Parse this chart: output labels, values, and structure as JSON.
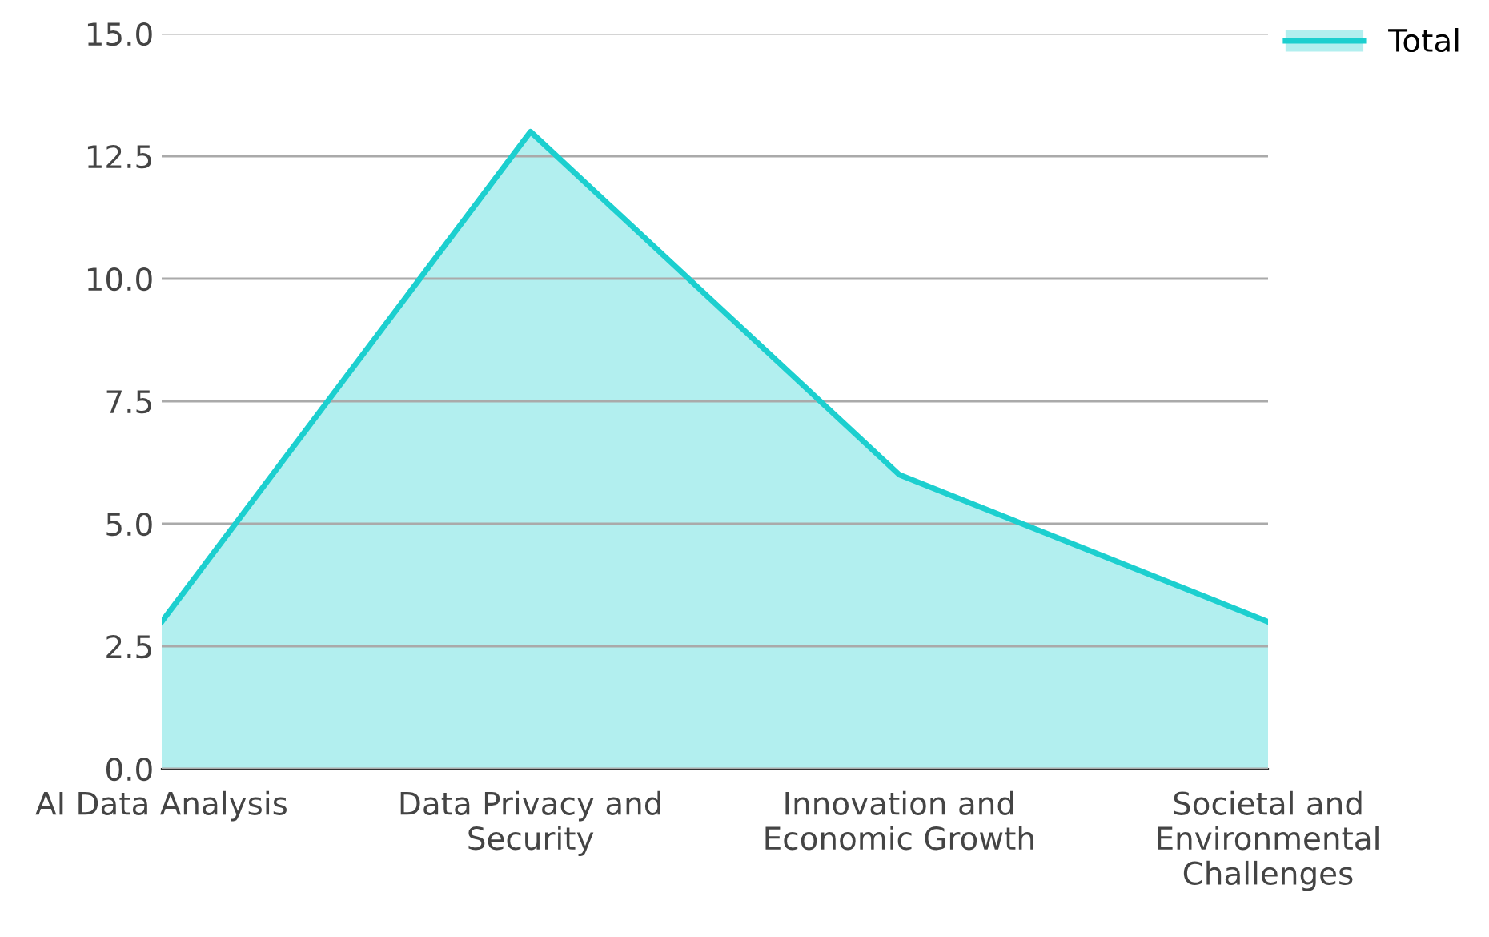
{
  "chart_data": {
    "type": "area",
    "categories": [
      "AI Data Analysis",
      "Data Privacy and\nSecurity",
      "Innovation and\nEconomic Growth",
      "Societal and\nEnvironmental\nChallenges"
    ],
    "series": [
      {
        "name": "Total",
        "color": "#1ccfcf",
        "values": [
          3,
          13,
          6,
          3
        ]
      }
    ],
    "ylim": [
      0,
      15
    ],
    "yticks": [
      {
        "value": 0,
        "label": "0.0"
      },
      {
        "value": 2.5,
        "label": "2.5"
      },
      {
        "value": 5,
        "label": "5.0"
      },
      {
        "value": 7.5,
        "label": "7.5"
      },
      {
        "value": 10,
        "label": "10.0"
      },
      {
        "value": 12.5,
        "label": "12.5"
      },
      {
        "value": 15,
        "label": "15.0"
      }
    ],
    "grid": "y",
    "legend": "top right",
    "marker": "none",
    "line_style": "solid"
  }
}
